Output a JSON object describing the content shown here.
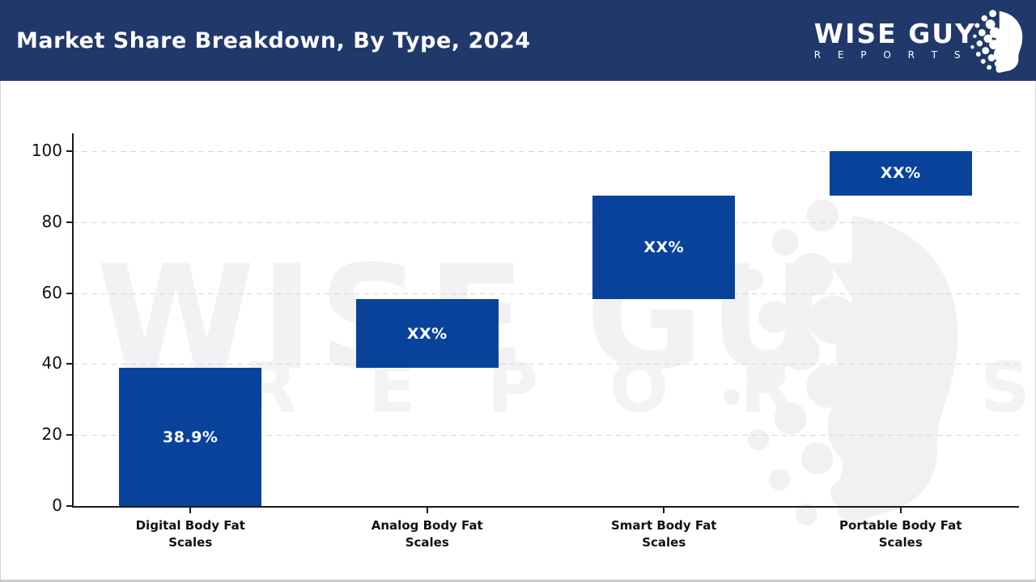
{
  "header": {
    "title": "Market Share Breakdown, By Type, 2024",
    "bg_color": "#21386b",
    "logo": {
      "wordmark": "WISE GUY",
      "sub": "R E P O R T S"
    }
  },
  "watermark": {
    "wordmark": "WISE GUY",
    "sub": "REPORTS"
  },
  "chart_data": {
    "type": "bar",
    "subtype": "waterfall",
    "title": "Market Share Breakdown, By Type, 2024",
    "categories": [
      "Digital Body Fat Scales",
      "Analog Body Fat Scales",
      "Smart Body Fat Scales",
      "Portable Body Fat Scales"
    ],
    "segments": [
      {
        "category": "Digital Body Fat Scales",
        "start": 0,
        "end": 38.9,
        "label": "38.9%"
      },
      {
        "category": "Analog Body Fat Scales",
        "start": 38.9,
        "end": 58.3,
        "label": "XX%"
      },
      {
        "category": "Smart Body Fat Scales",
        "start": 58.3,
        "end": 87.5,
        "label": "XX%"
      },
      {
        "category": "Portable Body Fat Scales",
        "start": 87.5,
        "end": 100,
        "label": "XX%"
      }
    ],
    "yticks": [
      0,
      20,
      40,
      60,
      80,
      100
    ],
    "ylim": [
      0,
      105
    ],
    "xlabel": "",
    "ylabel": "",
    "grid": true,
    "legend": "none",
    "bar_color": "#08429b",
    "gridline_color": "#d9d9d9",
    "axis_color": "#1a1a1a",
    "value_label_color": "#ffffff"
  }
}
